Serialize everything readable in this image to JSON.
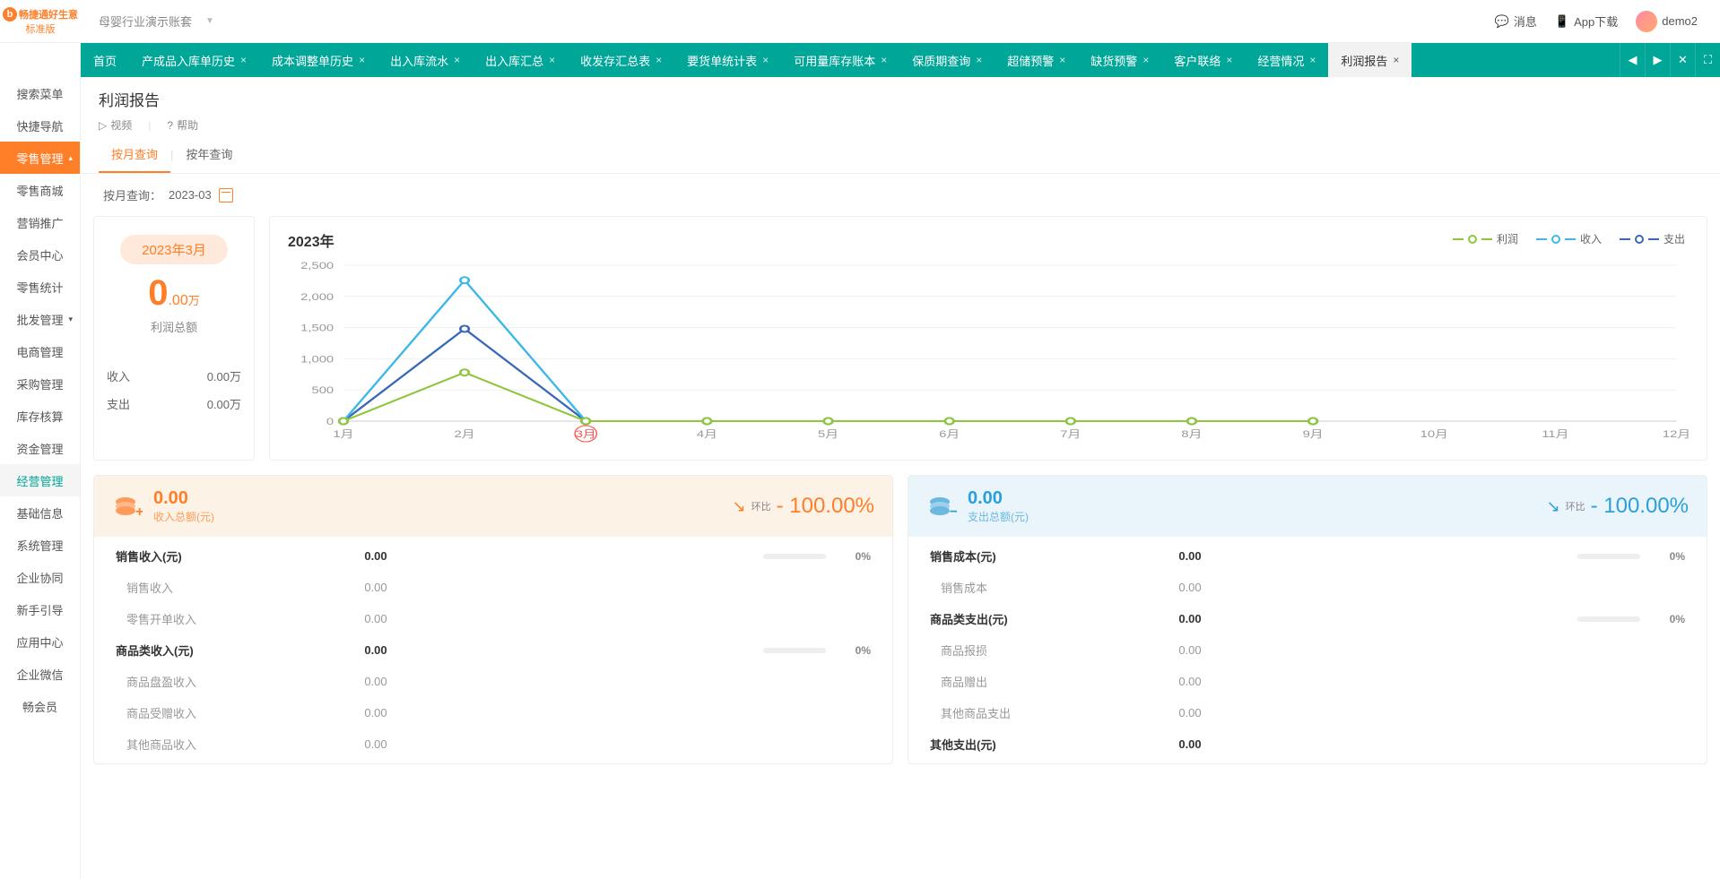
{
  "header": {
    "logo_main": "畅捷通好生意",
    "logo_sub": "标准版",
    "tenant": "母婴行业演示账套",
    "right": {
      "msg": "消息",
      "app": "App下载",
      "user": "demo2"
    }
  },
  "tabs": {
    "items": [
      {
        "label": "首页",
        "closable": false
      },
      {
        "label": "产成品入库单历史",
        "closable": true
      },
      {
        "label": "成本调整单历史",
        "closable": true
      },
      {
        "label": "出入库流水",
        "closable": true
      },
      {
        "label": "出入库汇总",
        "closable": true
      },
      {
        "label": "收发存汇总表",
        "closable": true
      },
      {
        "label": "要货单统计表",
        "closable": true
      },
      {
        "label": "可用量库存账本",
        "closable": true
      },
      {
        "label": "保质期查询",
        "closable": true
      },
      {
        "label": "超储预警",
        "closable": true
      },
      {
        "label": "缺货预警",
        "closable": true
      },
      {
        "label": "客户联络",
        "closable": true
      },
      {
        "label": "经营情况",
        "closable": true
      },
      {
        "label": "利润报告",
        "closable": true,
        "active": true
      }
    ]
  },
  "sidebar": {
    "items": [
      {
        "label": "搜索菜单"
      },
      {
        "label": "快捷导航"
      },
      {
        "label": "零售管理",
        "accent": true,
        "caret": "▴"
      },
      {
        "label": "零售商城"
      },
      {
        "label": "营销推广"
      },
      {
        "label": "会员中心"
      },
      {
        "label": "零售统计"
      },
      {
        "label": "批发管理",
        "caret": "▾"
      },
      {
        "label": "电商管理"
      },
      {
        "label": "采购管理"
      },
      {
        "label": "库存核算"
      },
      {
        "label": "资金管理"
      },
      {
        "label": "经营管理",
        "active": true
      },
      {
        "label": "基础信息"
      },
      {
        "label": "系统管理"
      },
      {
        "label": "企业协同"
      },
      {
        "label": "新手引导"
      },
      {
        "label": "应用中心"
      },
      {
        "label": "企业微信"
      },
      {
        "label": "畅会员"
      }
    ]
  },
  "page": {
    "title": "利润报告",
    "links": {
      "video": "视频",
      "help": "帮助"
    },
    "query_tabs": {
      "by_month": "按月查询",
      "by_year": "按年查询"
    },
    "filter": {
      "label": "按月查询：",
      "value": "2023-03"
    }
  },
  "summary": {
    "period": "2023年3月",
    "profit_int": "0",
    "profit_dec": ".00",
    "profit_unit": "万",
    "profit_label": "利润总额",
    "income_label": "收入",
    "income_value": "0.00万",
    "expense_label": "支出",
    "expense_value": "0.00万"
  },
  "chart": {
    "title": "2023年",
    "legend": {
      "profit": "利润",
      "income": "收入",
      "expense": "支出"
    },
    "colors": {
      "profit": "#8fc63d",
      "income": "#3fb8e8",
      "expense": "#3a68b6"
    },
    "y": {
      "min": 0,
      "max": 2500,
      "step": 500
    },
    "x_labels": [
      "1月",
      "2月",
      "3月",
      "4月",
      "5月",
      "6月",
      "7月",
      "8月",
      "9月",
      "10月",
      "11月",
      "12月"
    ],
    "highlight_x_index": 2,
    "series": {
      "profit": [
        0,
        780,
        0,
        0,
        0,
        0,
        0,
        0,
        0,
        0,
        0,
        0
      ],
      "income": [
        0,
        2260,
        0,
        0,
        0,
        0,
        0,
        0,
        0,
        0,
        0,
        0
      ],
      "expense": [
        0,
        1480,
        0,
        0,
        0,
        0,
        0,
        0,
        0,
        0,
        0,
        0
      ]
    },
    "drawn_points": 9,
    "grid_color": "#f0f0f0",
    "axis_color": "#ccc",
    "tick_font": 11
  },
  "income_panel": {
    "amount": "0.00",
    "sub": "收入总额(元)",
    "delta_label": "环比",
    "delta_value": "- 100.00%",
    "color": "#ff7e28",
    "bg": "#fdf2e6",
    "rows": [
      {
        "label": "销售收入(元)",
        "value": "0.00",
        "pct": "0%",
        "bold": true,
        "bar": true
      },
      {
        "label": "销售收入",
        "value": "0.00",
        "sub": true
      },
      {
        "label": "零售开单收入",
        "value": "0.00",
        "sub": true
      },
      {
        "label": "商品类收入(元)",
        "value": "0.00",
        "pct": "0%",
        "bold": true,
        "bar": true
      },
      {
        "label": "商品盘盈收入",
        "value": "0.00",
        "sub": true
      },
      {
        "label": "商品受赠收入",
        "value": "0.00",
        "sub": true
      },
      {
        "label": "其他商品收入",
        "value": "0.00",
        "sub": true
      }
    ]
  },
  "expense_panel": {
    "amount": "0.00",
    "sub": "支出总额(元)",
    "delta_label": "环比",
    "delta_value": "- 100.00%",
    "color": "#2b9fd9",
    "bg": "#e9f4fb",
    "rows": [
      {
        "label": "销售成本(元)",
        "value": "0.00",
        "pct": "0%",
        "bold": true,
        "bar": true
      },
      {
        "label": "销售成本",
        "value": "0.00",
        "sub": true
      },
      {
        "label": "商品类支出(元)",
        "value": "0.00",
        "pct": "0%",
        "bold": true,
        "bar": true
      },
      {
        "label": "商品报损",
        "value": "0.00",
        "sub": true
      },
      {
        "label": "商品赠出",
        "value": "0.00",
        "sub": true
      },
      {
        "label": "其他商品支出",
        "value": "0.00",
        "sub": true
      },
      {
        "label": "其他支出(元)",
        "value": "0.00",
        "bold": true
      }
    ]
  }
}
